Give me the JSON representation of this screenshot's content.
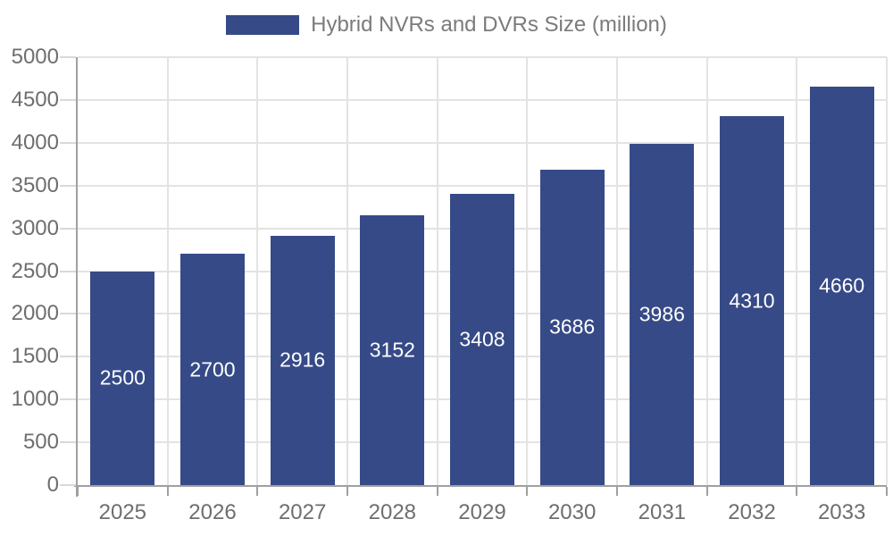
{
  "legend": {
    "label": "Hybrid NVRs and DVRs Size (million)"
  },
  "chart_data": {
    "type": "bar",
    "title": "Hybrid NVRs and DVRs Size (million)",
    "categories": [
      "2025",
      "2026",
      "2027",
      "2028",
      "2029",
      "2030",
      "2031",
      "2032",
      "2033"
    ],
    "values": [
      2500,
      2700,
      2916,
      3152,
      3408,
      3686,
      3986,
      4310,
      4660
    ],
    "xlabel": "",
    "ylabel": "",
    "ylim": [
      0,
      5000
    ],
    "yticks": [
      0,
      500,
      1000,
      1500,
      2000,
      2500,
      3000,
      3500,
      4000,
      4500,
      5000
    ],
    "grid": true,
    "legend_position": "top-center",
    "bar_label_position": "inside-center"
  },
  "colors": {
    "bar": "#364a87",
    "bar_label_text": "#ffffff",
    "legend_text": "#7b7b7b",
    "tick_text": "#6e6e6e",
    "grid": "#e3e3e3",
    "axis": "#a0a0a0",
    "tick_mark": "#d9d9d9",
    "background": "#ffffff"
  }
}
